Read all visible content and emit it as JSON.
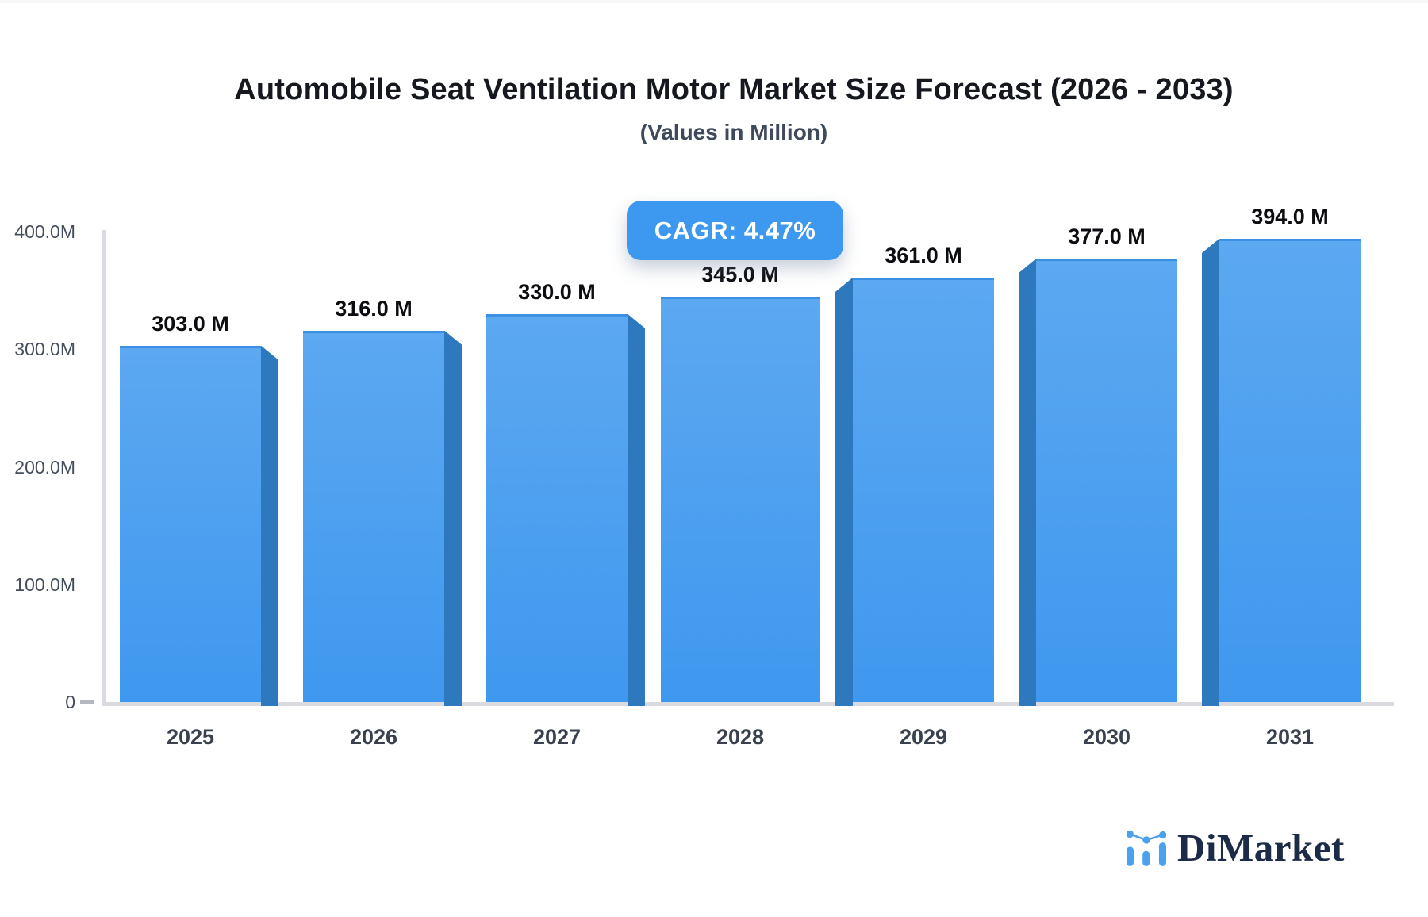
{
  "header": {
    "title": "Automobile Seat Ventilation Motor Market Size Forecast (2026 - 2033)",
    "subtitle": "(Values in Million)"
  },
  "cagr_badge": {
    "label": "CAGR: 4.47%",
    "value_percent": 4.47,
    "background_color": "#3d98ef",
    "text_color": "#ffffff"
  },
  "chart_data": {
    "type": "bar",
    "title": "Automobile Seat Ventilation Motor Market Size Forecast (2026 - 2033)",
    "subtitle": "(Values in Million)",
    "unit": "Million",
    "categories": [
      "2025",
      "2026",
      "2027",
      "2028",
      "2029",
      "2030",
      "2031"
    ],
    "values": [
      303.0,
      316.0,
      330.0,
      345.0,
      361.0,
      377.0,
      394.0
    ],
    "value_labels": [
      "303.0 M",
      "316.0 M",
      "330.0 M",
      "345.0 M",
      "361.0 M",
      "377.0 M",
      "394.0 M"
    ],
    "yticks": [
      {
        "label": "400.0M",
        "value": 400
      },
      {
        "label": "300.0M",
        "value": 300
      },
      {
        "label": "200.0M",
        "value": 200
      },
      {
        "label": "100.0M",
        "value": 100
      },
      {
        "label": "0",
        "value": 0
      }
    ],
    "ylim": [
      0,
      400
    ],
    "xlabel": "",
    "ylabel": "",
    "grid": false,
    "legend": false,
    "effect": "3d-perspective-bars",
    "bar_color_top": "#5ca8f1",
    "bar_color_bottom": "#3f98ef",
    "bar_side_color": "#2e78bd",
    "axis_color": "#d9dbe1"
  },
  "branding": {
    "logo_text": "DiMarket",
    "text_color": "#1c2b47",
    "icon_color": "#4aa1ee"
  }
}
